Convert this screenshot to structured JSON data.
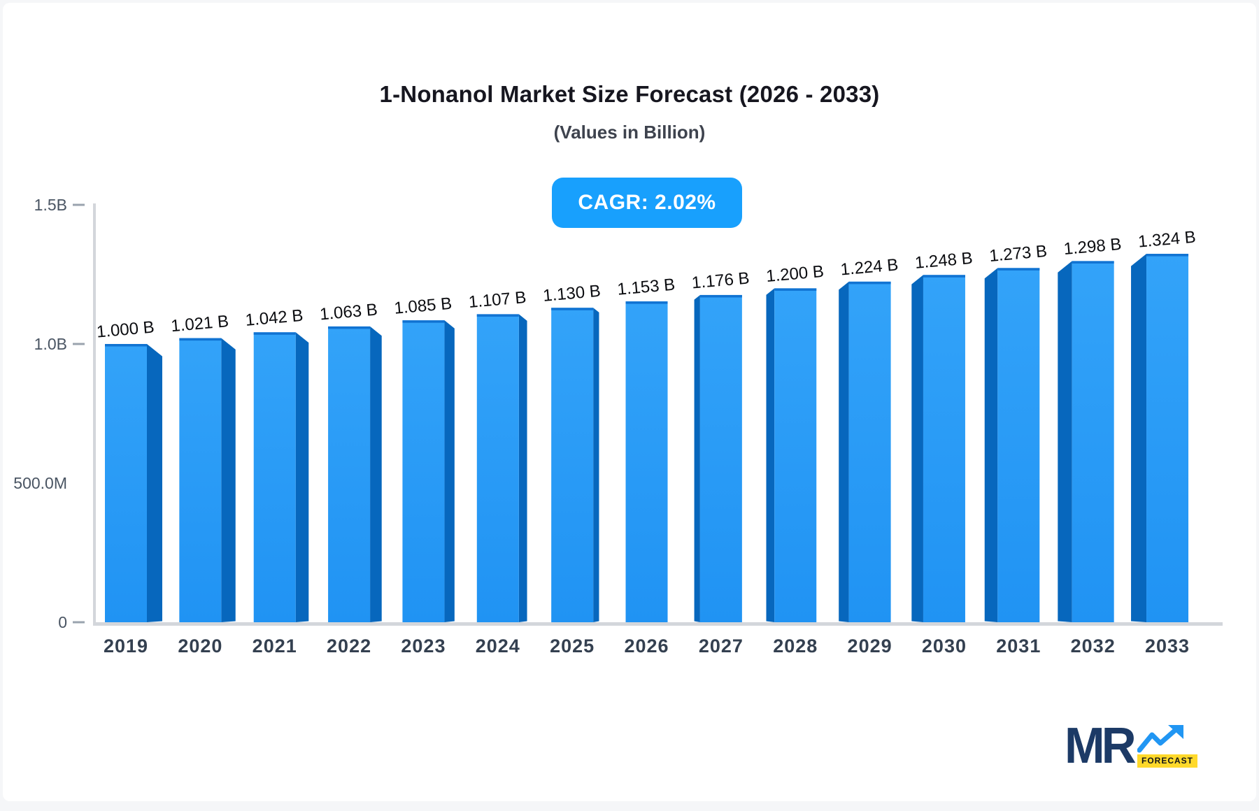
{
  "page": {
    "background": "#f5f6f8",
    "card_background": "#ffffff"
  },
  "badge": {
    "label": "CAGR: 2.02%",
    "background": "#18a0fd",
    "text_color": "#ffffff"
  },
  "logo": {
    "brand": "MR",
    "sub": "FORECAST",
    "brand_color": "#1c3a66",
    "arrow_color": "#2196f3",
    "sub_background": "#ffd92b"
  },
  "chart_data": {
    "type": "bar",
    "title": "1-Nonanol Market Size Forecast (2026 - 2033)",
    "subtitle": "(Values in Billion)",
    "unit": "Billion",
    "cagr": "2.02%",
    "categories": [
      "2019",
      "2020",
      "2021",
      "2022",
      "2023",
      "2024",
      "2025",
      "2026",
      "2027",
      "2028",
      "2029",
      "2030",
      "2031",
      "2032",
      "2033"
    ],
    "values": [
      1.0,
      1.021,
      1.042,
      1.063,
      1.085,
      1.107,
      1.13,
      1.153,
      1.176,
      1.2,
      1.224,
      1.248,
      1.273,
      1.298,
      1.324
    ],
    "value_labels": [
      "1.000 B",
      "1.021 B",
      "1.042 B",
      "1.063 B",
      "1.085 B",
      "1.107 B",
      "1.130 B",
      "1.153 B",
      "1.176 B",
      "1.200 B",
      "1.224 B",
      "1.248 B",
      "1.273 B",
      "1.298 B",
      "1.324 B"
    ],
    "xlabel": "",
    "ylabel": "",
    "ylim": [
      0,
      1.5
    ],
    "yticks": [
      {
        "label": "1.5B",
        "value": 1.5,
        "dash": true
      },
      {
        "label": "1.0B",
        "value": 1.0,
        "dash": true
      },
      {
        "label": "500.0M",
        "value": 0.5,
        "dash": false
      },
      {
        "label": "0",
        "value": 0.0,
        "dash": true
      }
    ],
    "grid": false,
    "legend": false,
    "colors": {
      "bar_face_top": "#33a3f9",
      "bar_face_bottom": "#2093f3",
      "bar_side": "#0767bd",
      "bar_cap": "#1173d2",
      "axis_line": "#d3d6db",
      "tick_dash": "#9aa3ae",
      "tick_label": "#4a5563",
      "x_label": "#344050",
      "value_label": "#0b0c10"
    }
  }
}
